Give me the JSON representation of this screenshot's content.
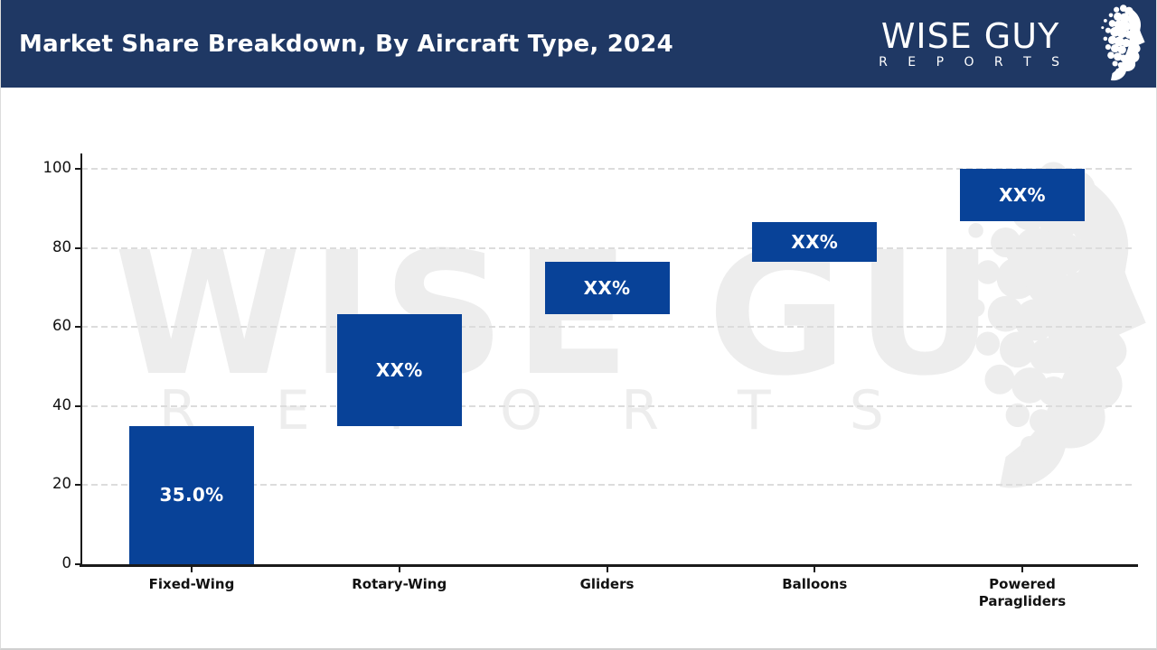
{
  "header": {
    "title": "Market Share Breakdown, By Aircraft Type, 2024",
    "logo": {
      "brand_line1": "WISE GUY",
      "brand_line2": "R E P O R T S"
    }
  },
  "watermark": {
    "line1": "WISE GUY",
    "line2": "R E P O R T S"
  },
  "chart_data": {
    "type": "bar",
    "variant": "floating-waterfall",
    "title": "Market Share Breakdown, By Aircraft Type, 2024",
    "categories": [
      "Fixed-Wing",
      "Rotary-Wing",
      "Gliders",
      "Balloons",
      "Powered Paragliders"
    ],
    "bars": [
      {
        "category": "Fixed-Wing",
        "base": 0,
        "top": 35,
        "label": "35.0%"
      },
      {
        "category": "Rotary-Wing",
        "base": 35,
        "top": 63.3,
        "label": "XX%"
      },
      {
        "category": "Gliders",
        "base": 63.3,
        "top": 76.4,
        "label": "XX%"
      },
      {
        "category": "Balloons",
        "base": 76.5,
        "top": 86.6,
        "label": "XX%"
      },
      {
        "category": "Powered Paragliders",
        "base": 86.8,
        "top": 99.9,
        "label": "XX%"
      }
    ],
    "xlabel": "",
    "ylabel": "",
    "yticks": [
      0,
      20,
      40,
      60,
      80,
      100
    ],
    "ylim": [
      0,
      104
    ],
    "grid": "horizontal-dashed",
    "legend": "none"
  },
  "colors": {
    "header_bg": "#1f3864",
    "bar": "#084298",
    "bar_label": "#ffffff",
    "axis": "#1a1a1a",
    "grid": "#dcdcdc",
    "watermark": "#ededed"
  }
}
